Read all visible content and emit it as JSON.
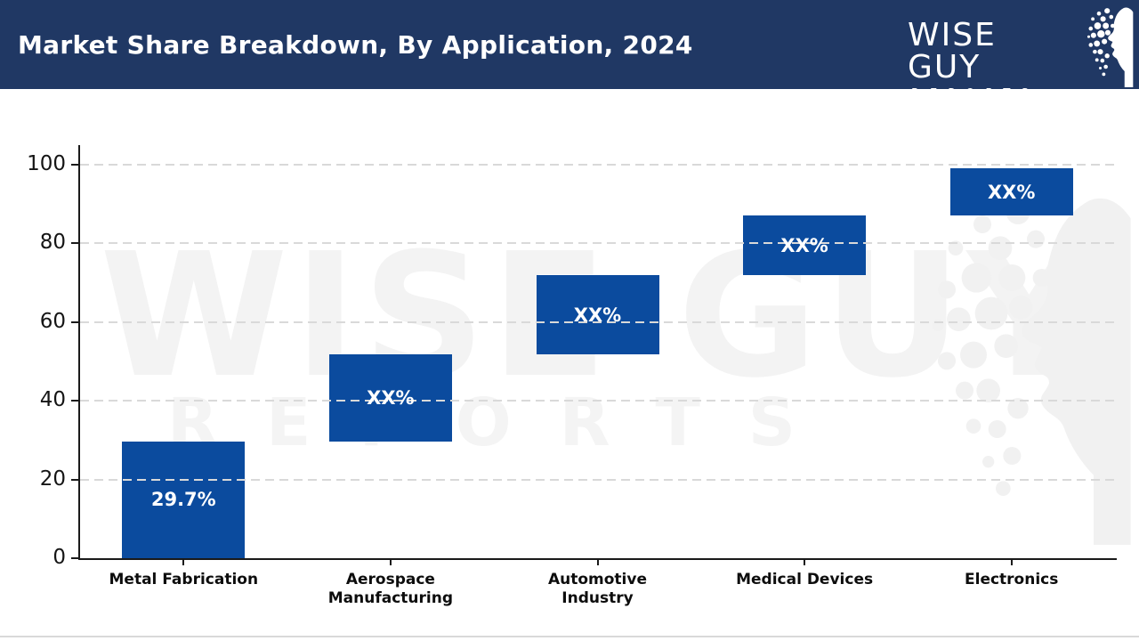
{
  "header": {
    "title": "Market Share Breakdown, By Application, 2024",
    "brand_line1": "WISE GUY",
    "brand_line2": "REPORTS",
    "bg_color": "#203864"
  },
  "watermark": {
    "line1": "WISE GUY",
    "line2": "REPORTS"
  },
  "chart_data": {
    "type": "bar",
    "variant": "waterfall-floating-bars",
    "title": "Market Share Breakdown, By Application, 2024",
    "xlabel": "",
    "ylabel": "",
    "categories": [
      "Metal Fabrication",
      "Aerospace Manufacturing",
      "Automotive Industry",
      "Medical Devices",
      "Electronics"
    ],
    "category_label_lines": [
      [
        "Metal Fabrication"
      ],
      [
        "Aerospace",
        "Manufacturing"
      ],
      [
        "Automotive",
        "Industry"
      ],
      [
        "Medical Devices"
      ],
      [
        "Electronics"
      ]
    ],
    "segments": [
      {
        "category": "Metal Fabrication",
        "start": 0,
        "end": 29.7,
        "label": "29.7%"
      },
      {
        "category": "Aerospace Manufacturing",
        "start": 29.7,
        "end": 51.7,
        "label": "XX%"
      },
      {
        "category": "Automotive Industry",
        "start": 51.7,
        "end": 72.0,
        "label": "XX%"
      },
      {
        "category": "Medical Devices",
        "start": 72.0,
        "end": 87.0,
        "label": "XX%"
      },
      {
        "category": "Electronics",
        "start": 87.0,
        "end": 99.0,
        "label": "XX%"
      }
    ],
    "yticks": [
      0,
      20,
      40,
      60,
      80,
      100
    ],
    "ylim": [
      0,
      105
    ],
    "grid": "horizontal-dashed",
    "legend": "none",
    "bar_color": "#0b4b9e",
    "bar_label_color": "#ffffff",
    "grid_color": "#d9d9d9",
    "axis_color": "#1a1a1a",
    "tick_label_color": "#151515"
  }
}
